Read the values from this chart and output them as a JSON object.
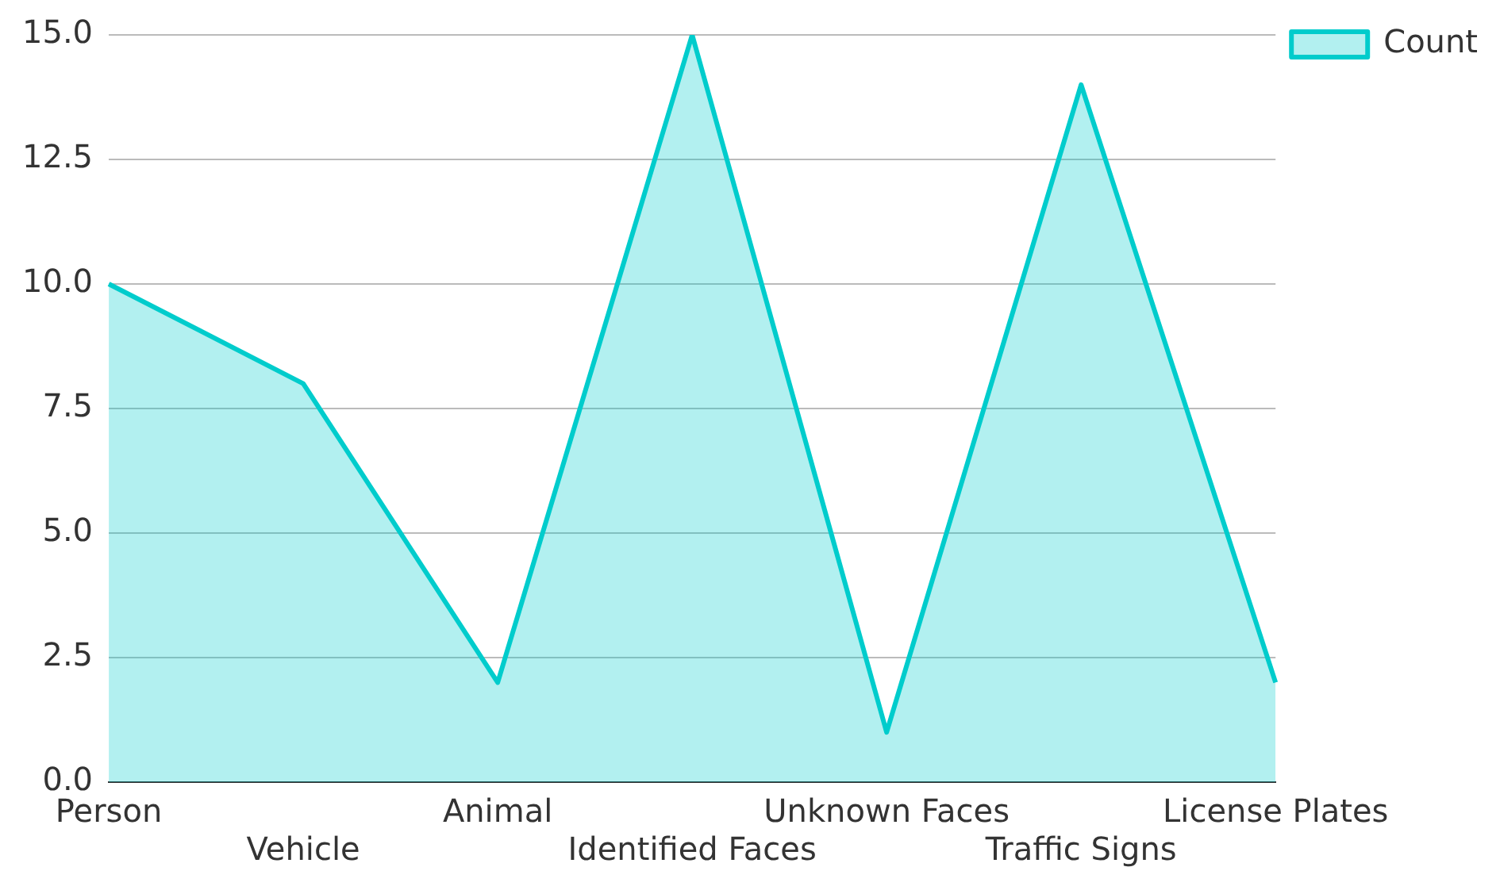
{
  "chart_data": {
    "type": "area",
    "categories": [
      "Person",
      "Vehicle",
      "Animal",
      "Identified Faces",
      "Unknown Faces",
      "Traffic Signs",
      "License Plates"
    ],
    "series": [
      {
        "name": "Count",
        "color": "#00cccc",
        "values": [
          10,
          8,
          2,
          15,
          1,
          14,
          2
        ]
      }
    ],
    "ylim": [
      0,
      15
    ],
    "yticks": [
      {
        "value": 0,
        "label": "0.0"
      },
      {
        "value": 2.5,
        "label": "2.5"
      },
      {
        "value": 5,
        "label": "5.0"
      },
      {
        "value": 7.5,
        "label": "7.5"
      },
      {
        "value": 10,
        "label": "10.0"
      },
      {
        "value": 12.5,
        "label": "12.5"
      },
      {
        "value": 15,
        "label": "15.0"
      }
    ],
    "grid": "y",
    "legend": "top right",
    "marker": "none"
  }
}
